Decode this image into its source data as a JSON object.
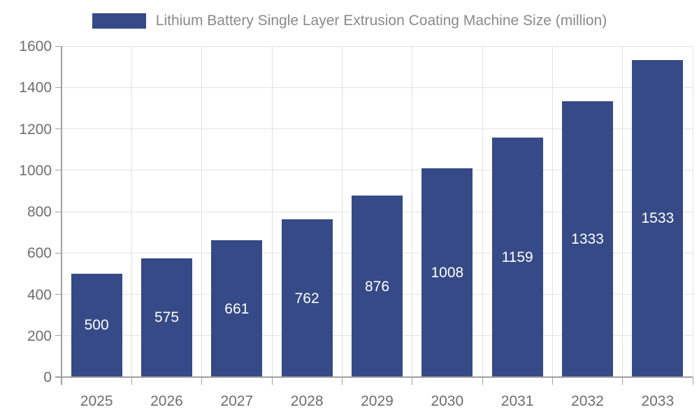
{
  "chart_data": {
    "type": "bar",
    "title": "Lithium Battery Single Layer Extrusion Coating Machine Size (million)",
    "categories": [
      "2025",
      "2026",
      "2027",
      "2028",
      "2029",
      "2030",
      "2031",
      "2032",
      "2033"
    ],
    "values": [
      500,
      575,
      661,
      762,
      876,
      1008,
      1159,
      1333,
      1533
    ],
    "xlabel": "",
    "ylabel": "",
    "ylim": [
      0,
      1600
    ],
    "y_ticks": [
      0,
      200,
      400,
      600,
      800,
      1000,
      1200,
      1400,
      1600
    ],
    "grid": "on",
    "legend_position": "top-center",
    "value_labels": "inside-center-white",
    "colors": {
      "bar": "#354a86",
      "bar_value_text": "#ffffff",
      "grid": "#e2e2e2",
      "axis": "#a0a0a0",
      "tick_text": "#6e6e6e",
      "legend_text": "#8a8a8a",
      "background": "#ffffff"
    }
  }
}
